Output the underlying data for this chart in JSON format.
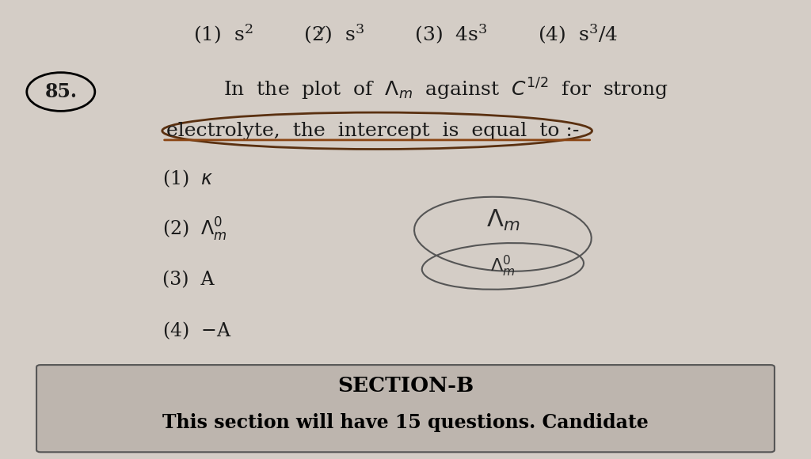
{
  "bg_color": "#c8c0b8",
  "page_bg": "#d4cdc6",
  "top_line": "(1)  s²       (2)  s³       (3)  4s³       (4)  s³/4",
  "question_num": "85.",
  "question_text_line1": "In  the  plot  of  Λₘ  against  C¹²  for  strong",
  "question_text_line2": "electrolyte,  the  intercept  is  equal  to :-",
  "options": [
    "(1)  κ",
    "(2)  Λₘ°",
    "(3)  A",
    "(4)  −A"
  ],
  "section_bg": "#b8b0a8",
  "section_title": "SECTION-B",
  "section_subtitle": "This section will have 15 questions. Candidate",
  "circle_num_color": "#000000",
  "text_color": "#1a1a1a",
  "underline_color": "#8B4513",
  "font_size_main": 18,
  "font_size_options": 17,
  "font_size_section": 19
}
